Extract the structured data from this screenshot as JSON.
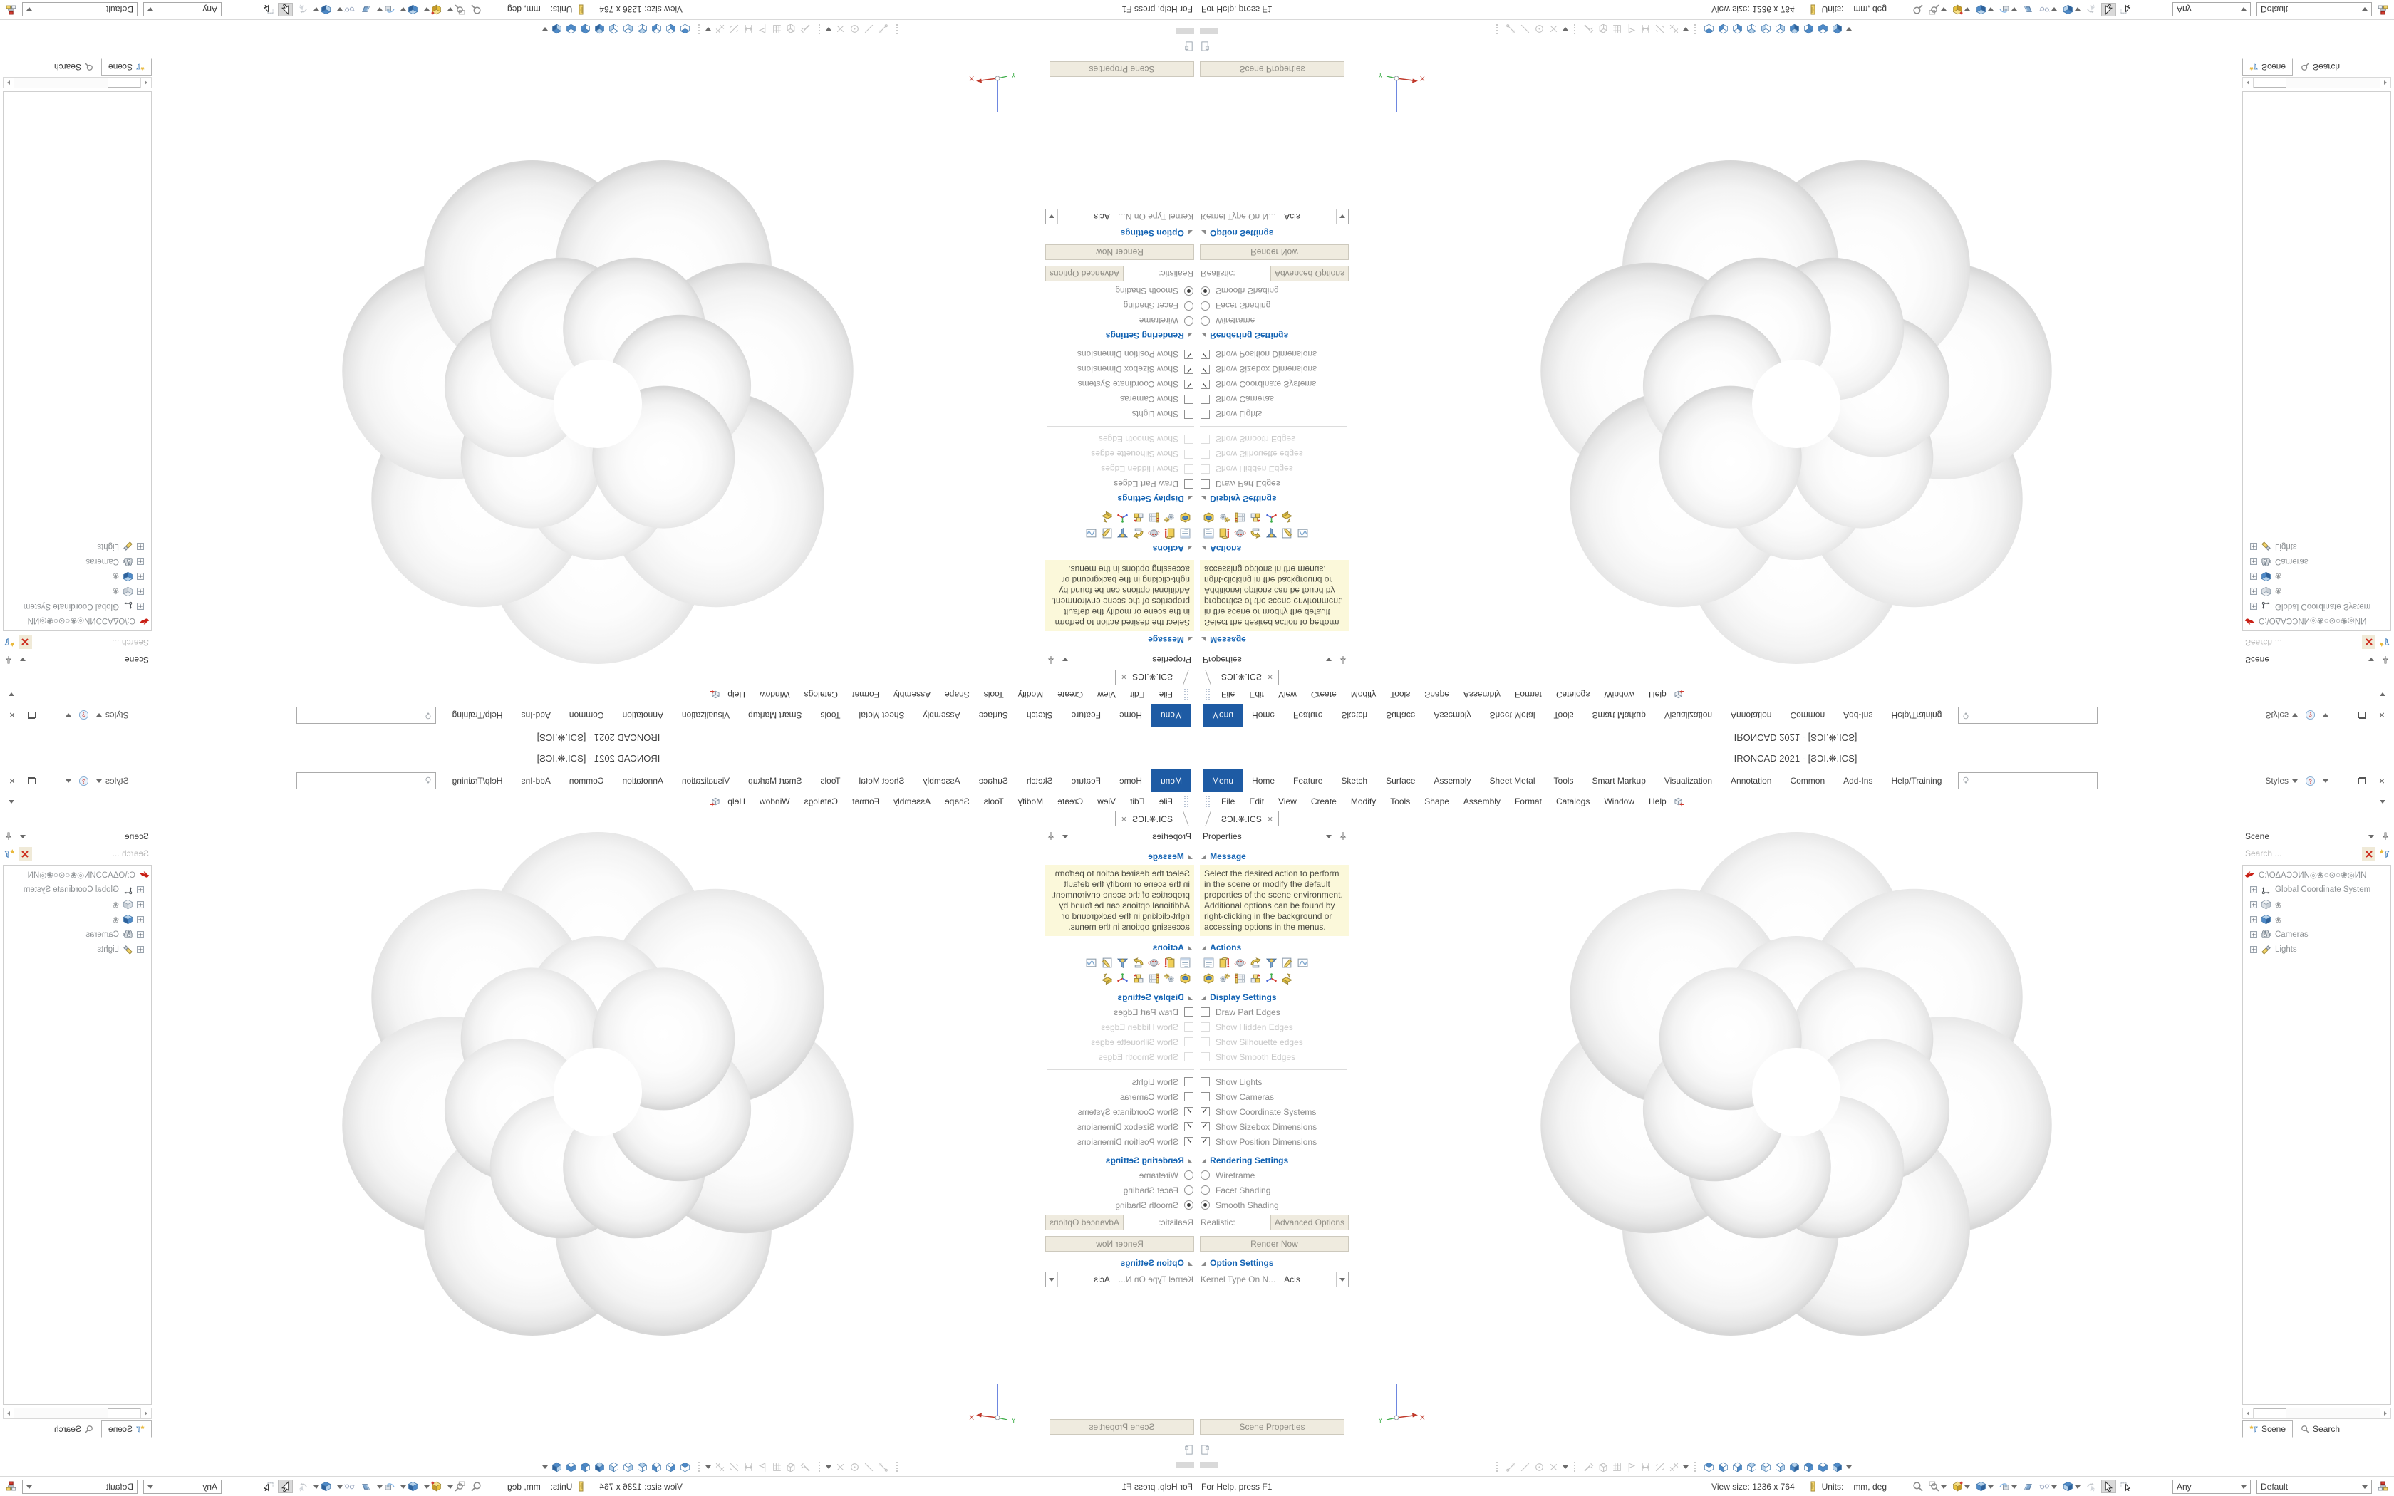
{
  "window": {
    "title": "IRONCAD 2021 - [ƧƆI.❋.ICS]"
  },
  "ribbon": {
    "active_tab": "Menu",
    "tabs": [
      "Menu",
      "Home",
      "Feature",
      "Sketch",
      "Surface",
      "Assembly",
      "Sheet Metal",
      "Tools",
      "Smart Markup",
      "Visualization",
      "Annotation",
      "Common",
      "Add-Ins",
      "Help/Training"
    ],
    "search_placeholder": "",
    "styles_label": "Styles",
    "help_icon": "?"
  },
  "menubar": {
    "items": [
      "File",
      "Edit",
      "View",
      "Create",
      "Modify",
      "Tools",
      "Shape",
      "Assembly",
      "Format",
      "Catalogs",
      "Window",
      "Help"
    ],
    "cube_plus_icon": "cube-plus-icon"
  },
  "document": {
    "tab_label": "ƧƆI.❋.ICS",
    "close_label": "×"
  },
  "properties": {
    "title": "Properties",
    "message": {
      "header": "Message",
      "text": "Select the desired action to perform in the scene or modify the default properties of the scene environment. Additional options can be found by right-clicking in the background or accessing options in the menus."
    },
    "actions": {
      "header": "Actions",
      "icons_row1": [
        "scene-settings-icon",
        "part-alert-icon",
        "orbit-icon",
        "extract-icon",
        "funnel-icon",
        "edit-sheet-icon",
        "graph-icon"
      ],
      "icons_row2": [
        "hole-box-icon",
        "gears-icon",
        "ruler-grid-icon",
        "boxes-icon",
        "axes-icon",
        "pull-shape-icon"
      ]
    },
    "display": {
      "header": "Display Settings",
      "items": [
        {
          "label": "Draw Part Edges",
          "checked": false,
          "disabled": false
        },
        {
          "label": "Show Hidden Edges",
          "checked": false,
          "disabled": true
        },
        {
          "label": "Show Silhouette edges",
          "checked": false,
          "disabled": true
        },
        {
          "label": "Show Smooth Edges",
          "checked": false,
          "disabled": true
        },
        {
          "label": "Show Lights",
          "checked": false,
          "disabled": false
        },
        {
          "label": "Show Cameras",
          "checked": false,
          "disabled": false
        },
        {
          "label": "Show Coordinate Systems",
          "checked": true,
          "disabled": false
        },
        {
          "label": "Show Sizebox Dimensions",
          "checked": true,
          "disabled": false
        },
        {
          "label": "Show Position Dimensions",
          "checked": true,
          "disabled": false
        }
      ]
    },
    "rendering": {
      "header": "Rendering Settings",
      "options": [
        {
          "label": "Wireframe",
          "selected": false
        },
        {
          "label": "Facet Shading",
          "selected": false
        },
        {
          "label": "Smooth Shading",
          "selected": true
        }
      ],
      "realistic_label": "Realistic:",
      "advanced_button": "Advanced Options",
      "render_button": "Render Now"
    },
    "options": {
      "header": "Option Settings",
      "kernel_label": "Kernel Type On N...",
      "kernel_value": "Acis"
    },
    "scene_properties_button": "Scene Properties"
  },
  "scene": {
    "title": "Scene",
    "search_placeholder": "Search ...",
    "root_path": "C:\\ΟΔΑƆƆИΝ◎❀○⊙○❀◎ИΝ",
    "items": [
      "Global Coordinate System",
      "❀",
      "❀",
      "Cameras",
      "Lights"
    ],
    "tabs": [
      "Scene",
      "Search"
    ]
  },
  "viewport": {
    "model": "white-blossom-torus",
    "background": "#ffffff",
    "triad_x": "X",
    "triad_y": "Y"
  },
  "view_toolbar": {
    "group1_icons": [
      "endpoint-line-icon",
      "line-icon",
      "circle-icon",
      "cross-icon"
    ],
    "group2_icons": [
      "wand-icon",
      "reshape-icon",
      "grid-icon",
      "flag-icon",
      "height-icon",
      "slope-dim-icon",
      "slope-dim2-icon"
    ],
    "group3_icons": [
      "view-cube-icons-x10"
    ]
  },
  "statusbar": {
    "help_text": "For Help, press F1",
    "view_size_label": "View size: 1236 x 764",
    "units_label": "Units:",
    "units_value": "mm, deg",
    "icons": [
      "zoom-icon",
      "zoom-window-icon",
      "cube-yellow-icon",
      "cube-blue-icon",
      "camera-capture-icon",
      "prism-icon",
      "glasses-icon",
      "shaded-cube-icon",
      "spin-icon",
      "select-cursor-icon",
      "select-box-icon"
    ],
    "filter_any": "Any",
    "filter_default": "Default"
  },
  "colors": {
    "accent_blue": "#1e5ba4",
    "section_blue": "#1464b4",
    "message_bg": "#fbf8da",
    "button_bg": "#efebdf",
    "flower_shade": "#d9d9d9"
  }
}
